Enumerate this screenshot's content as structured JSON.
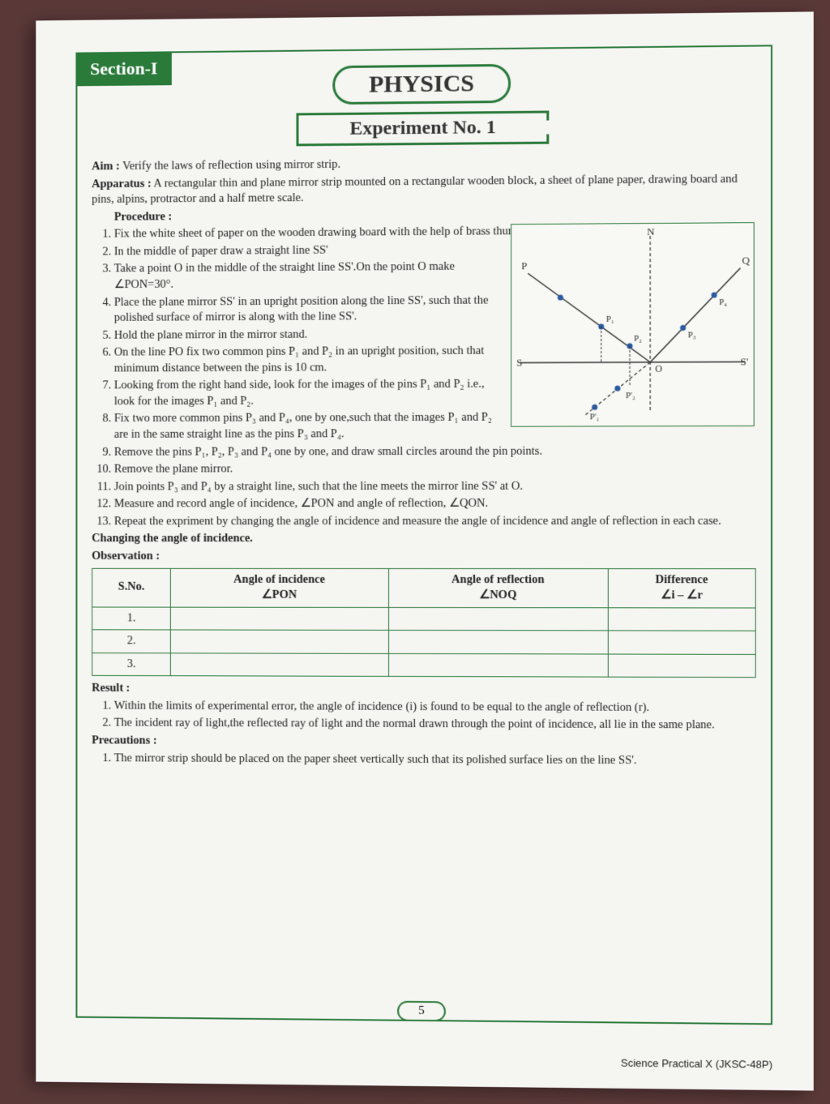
{
  "section_label": "Section-I",
  "subject": "PHYSICS",
  "experiment_title": "Experiment No. 1",
  "aim_label": "Aim :",
  "aim_text": "Verify the laws of reflection using mirror strip.",
  "apparatus_label": "Apparatus :",
  "apparatus_text": "A rectangular thin and plane mirror strip mounted on a rectangular wooden block, a sheet of plane paper, drawing board and pins, alpins, protractor and a half metre scale.",
  "procedure_label": "Procedure :",
  "procedure": [
    "Fix the white sheet of paper on the wooden drawing board with the help of brass thumb tacks.",
    "In the middle of paper draw a straight line SS'",
    "Take a point O in the middle of the straight line SS'.On the point O make ∠PON=30°.",
    "Place the plane mirror SS' in an upright position along the line SS', such that the polished surface of mirror is along with the line SS'.",
    "Hold the plane mirror in the mirror stand.",
    "On the line PO fix two common pins P₁ and P₂ in an upright position, such that minimum distance between the pins is 10 cm.",
    "Looking from the right hand side, look for the images of the pins P₁ and P₂ i.e., look for the images P₁ and P₂.",
    "Fix two more common pins P₃ and P₄, one by one,such that the images P₁ and P₂ are in the same straight line as the pins P₃ and P₄.",
    "Remove the pins P₁, P₂, P₃ and P₄ one by one, and draw small circles around the pin points.",
    "Remove the plane mirror.",
    "Join points P₃ and P₄ by a straight line, such that the line meets the mirror line SS' at O.",
    "Measure and record angle of incidence, ∠PON and angle of reflection, ∠QON.",
    "Repeat the expriment by changing the angle of incidence and measure the angle of incidence and angle of reflection in each case."
  ],
  "changing_label": "Changing the angle of incidence.",
  "observation_label": "Observation :",
  "table": {
    "headers": {
      "sno": "S.No.",
      "incidence": "Angle of incidence\n∠PON",
      "reflection": "Angle of reflection\n∠NOQ",
      "difference": "Difference\n∠i – ∠r"
    },
    "rows": [
      "1.",
      "2.",
      "3."
    ]
  },
  "result_label": "Result :",
  "results": [
    "Within the limits of experimental error, the angle of incidence (i) is found to be equal to the angle of reflection (r).",
    "The incident ray of light,the reflected ray of light and the normal drawn through the point of incidence, all lie in the same plane."
  ],
  "precautions_label": "Precautions :",
  "precautions": [
    "The mirror strip should be placed on the paper sheet vertically such that its polished surface lies on the line SS'."
  ],
  "page_number": "5",
  "footer_text": "Science Practical X (JKSC-48P)",
  "figure": {
    "border_color": "#2a7a3a",
    "labels": {
      "N": "N",
      "P": "P",
      "Q": "Q",
      "S": "S",
      "Sp": "S'",
      "O": "O",
      "P1": "P₁",
      "P2": "P₂",
      "P3": "P₃",
      "P4": "P₄",
      "P1p": "P'₁",
      "P2p": "P'₂"
    },
    "colors": {
      "line": "#333",
      "dash": "#333",
      "dot": "#2a5aa0"
    }
  },
  "wrap_indices": [
    2,
    3,
    4,
    5,
    6,
    7
  ]
}
